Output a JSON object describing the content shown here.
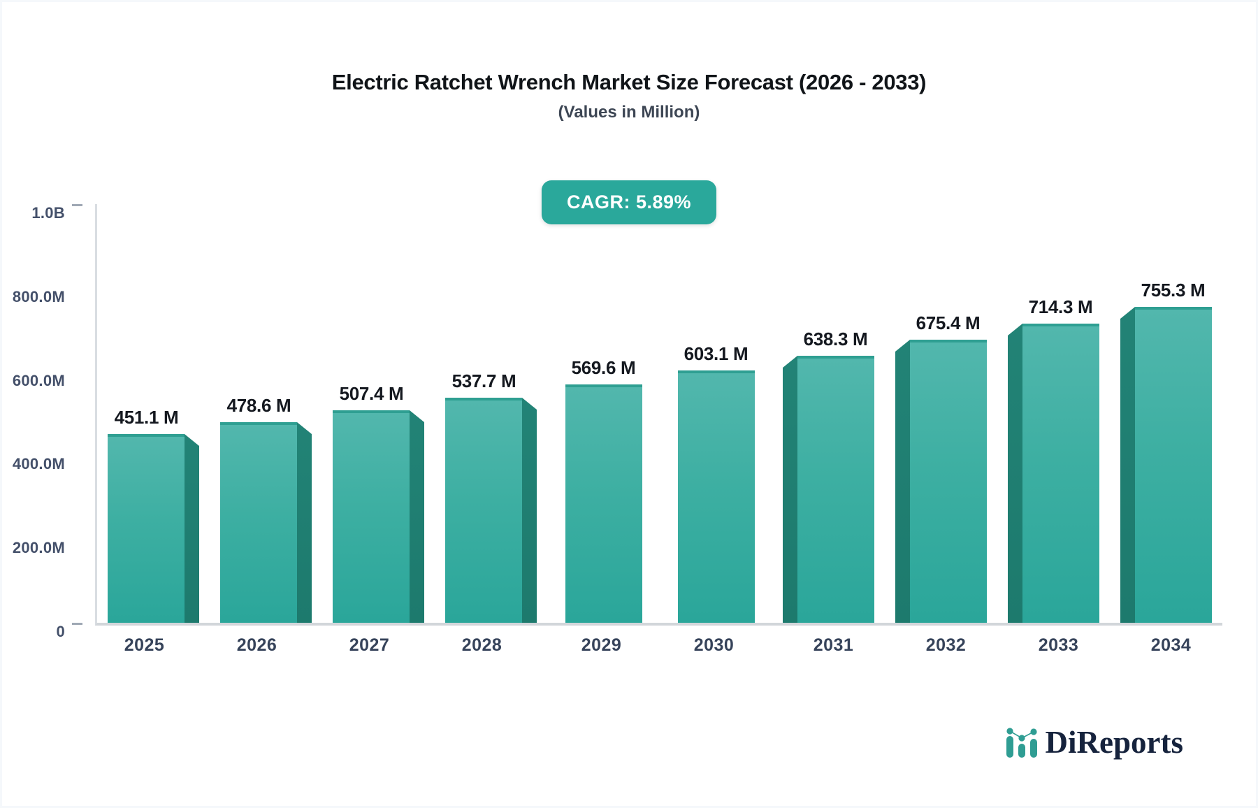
{
  "header": {
    "title": "Electric Ratchet Wrench Market Size Forecast (2026 - 2033)",
    "subtitle": "(Values in Million)",
    "cagr_badge": "CAGR: 5.89%"
  },
  "chart_data": {
    "type": "bar",
    "title": "Electric Ratchet Wrench Market Size Forecast (2026 - 2033)",
    "subtitle": "(Values in Million)",
    "cagr_text": "CAGR: 5.89%",
    "unit": "Million USD",
    "categories": [
      "2025",
      "2026",
      "2027",
      "2028",
      "2029",
      "2030",
      "2031",
      "2032",
      "2033",
      "2034"
    ],
    "values": [
      451.1,
      478.6,
      507.4,
      537.7,
      569.6,
      603.1,
      638.3,
      675.4,
      714.3,
      755.3
    ],
    "value_labels": [
      "451.1 M",
      "478.6 M",
      "507.4 M",
      "537.7 M",
      "569.6 M",
      "603.1 M",
      "638.3 M",
      "675.4 M",
      "714.3 M",
      "755.3 M"
    ],
    "ylim": [
      0,
      1000
    ],
    "yticks": [
      {
        "label": "1.0B",
        "value": 1000,
        "dash": true
      },
      {
        "label": "800.0M",
        "value": 800,
        "dash": false
      },
      {
        "label": "600.0M",
        "value": 600,
        "dash": false
      },
      {
        "label": "400.0M",
        "value": 400,
        "dash": false
      },
      {
        "label": "200.0M",
        "value": 200,
        "dash": false
      },
      {
        "label": "0",
        "value": 0,
        "dash": true
      }
    ],
    "grid": false,
    "legend": null,
    "bar_style_3d_sides": [
      "right",
      "right",
      "right",
      "right",
      "none",
      "none",
      "left",
      "left",
      "left",
      "left"
    ]
  },
  "branding": {
    "logo_text": "DiReports",
    "logo_icon": "bar-chart-trend-icon"
  },
  "colors": {
    "bar_face_top": "#52b7ad",
    "bar_face_bottom": "#2aa69a",
    "bar_top_edge": "#2f9f92",
    "bar_side_panel": "#1f8073",
    "badge_background": "#2aa89b",
    "badge_text": "#ffffff",
    "title_text": "#101418",
    "subtitle_text": "#3d4654",
    "axis_line": "#d9dde2",
    "baseline": "#d2d6da",
    "tick_dash": "#9fa8b4",
    "y_label_text": "#44506a",
    "x_label_text": "#36435a",
    "value_label_text": "#14181f",
    "logo_navy": "#16233d",
    "logo_teal": "#2f9d93"
  }
}
